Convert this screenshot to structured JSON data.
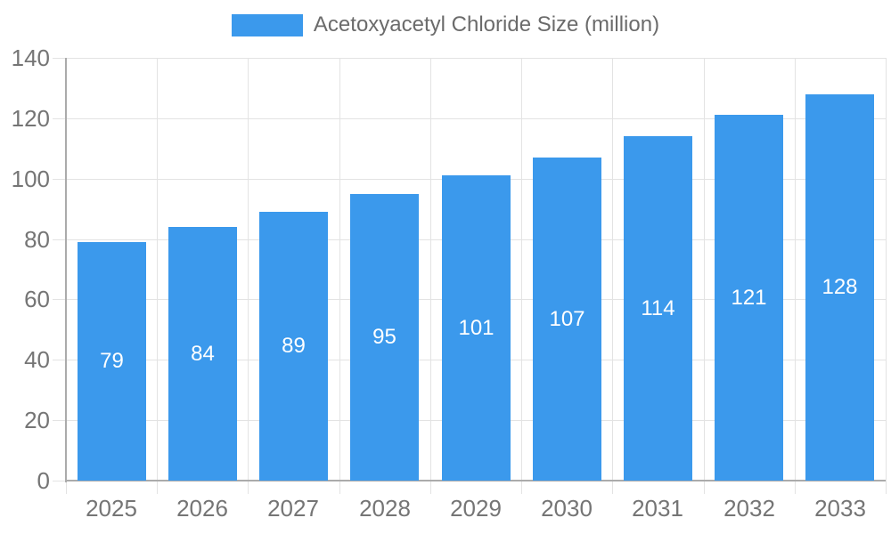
{
  "legend": {
    "label": "Acetoxyacetyl Chloride Size (million)",
    "swatch_color": "#3B99EC"
  },
  "chart_data": {
    "type": "bar",
    "title": "",
    "categories": [
      "2025",
      "2026",
      "2027",
      "2028",
      "2029",
      "2030",
      "2031",
      "2032",
      "2033"
    ],
    "series": [
      {
        "name": "Acetoxyacetyl Chloride Size (million)",
        "values": [
          79,
          84,
          89,
          95,
          101,
          107,
          114,
          121,
          128
        ],
        "color": "#3B99EC"
      }
    ],
    "xlabel": "",
    "ylabel": "",
    "ylim": [
      0,
      140
    ],
    "yticks": [
      0,
      20,
      40,
      60,
      80,
      100,
      120,
      140
    ],
    "grid": true,
    "legend_position": "top-center",
    "value_labels": "inside-center",
    "value_label_color": "#FFFFFF"
  },
  "colors": {
    "bar": "#3B99EC",
    "axis_text": "#757575",
    "legend_text": "#6B6B6B",
    "grid_line": "#E3E3E3",
    "axis_line": "#ABABAB",
    "background": "#FFFFFF"
  }
}
